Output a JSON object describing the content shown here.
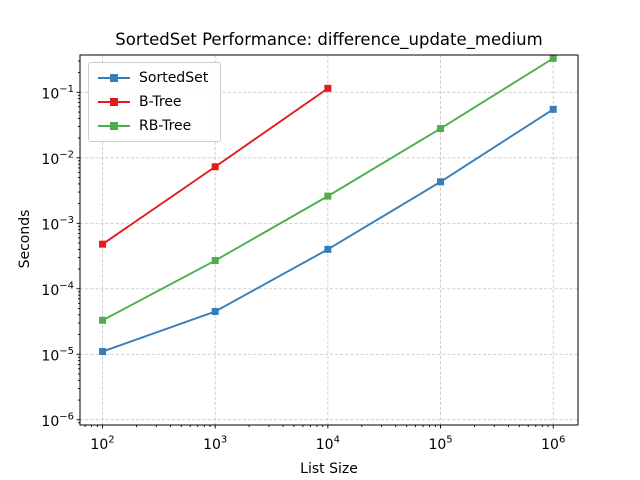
{
  "chart_data": {
    "type": "line",
    "title": "SortedSet Performance: difference_update_medium",
    "xlabel": "List Size",
    "ylabel": "Seconds",
    "x_scale": "log",
    "y_scale": "log",
    "xlim_log10": [
      1.8,
      6.22
    ],
    "ylim_log10": [
      -6.08,
      -0.43
    ],
    "x_tick_labels": [
      "10^2",
      "10^3",
      "10^4",
      "10^5",
      "10^6"
    ],
    "y_tick_labels": [
      "10^-6",
      "10^-5",
      "10^-4",
      "10^-3",
      "10^-2",
      "10^-1"
    ],
    "x_ticks": [
      100,
      1000,
      10000,
      100000,
      1000000
    ],
    "y_ticks": [
      1e-06,
      1e-05,
      0.0001,
      0.001,
      0.01,
      0.1
    ],
    "grid": true,
    "grid_style": "dashed",
    "legend_position": "upper left",
    "marker": "square",
    "series": [
      {
        "name": "SortedSet",
        "color": "#377eb8",
        "x": [
          100,
          1000,
          10000,
          100000,
          1000000
        ],
        "values": [
          1.1e-05,
          4.5e-05,
          0.0004,
          0.0043,
          0.055
        ]
      },
      {
        "name": "B-Tree",
        "color": "#e41a1c",
        "x": [
          100,
          1000,
          10000
        ],
        "values": [
          0.00048,
          0.0073,
          0.115
        ]
      },
      {
        "name": "RB-Tree",
        "color": "#4daf4a",
        "x": [
          100,
          1000,
          10000,
          100000,
          1000000
        ],
        "values": [
          3.3e-05,
          0.00027,
          0.0026,
          0.028,
          0.33
        ]
      }
    ]
  }
}
